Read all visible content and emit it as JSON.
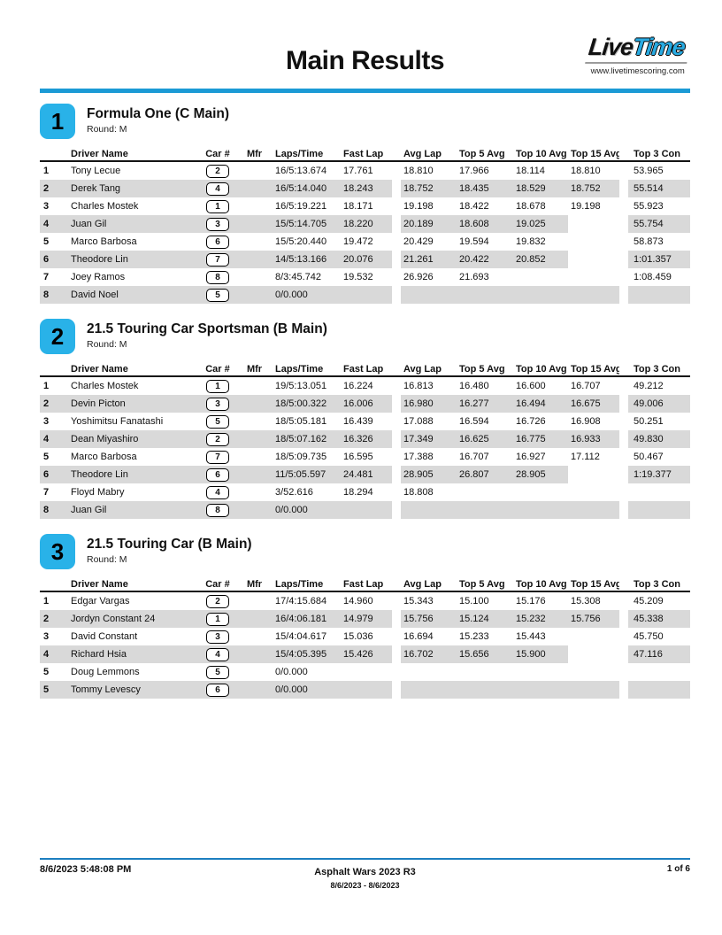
{
  "page": {
    "title": "Main Results",
    "logo_live": "Live",
    "logo_time": "Time",
    "logo_url": "www.livetimescoring.com",
    "accent_color": "#29b2e8",
    "bar_color": "#1b9ad5",
    "zebra_color": "#d9d9d9"
  },
  "columns": [
    "Driver Name",
    "Car #",
    "Mfr",
    "Laps/Time",
    "Fast Lap",
    "Avg Lap",
    "Top 5 Avg",
    "Top 10 Avg",
    "Top 15 Avg",
    "Top 3 Con"
  ],
  "sections": [
    {
      "number": "1",
      "title": "Formula One (C Main)",
      "round": "Round: M",
      "rows": [
        {
          "pos": "1",
          "driver": "Tony Lecue",
          "car_num": "2",
          "mfr": "",
          "laps_time": "16/5:13.674",
          "fast_lap": "17.761",
          "avg_lap": "18.810",
          "top5_avg": "17.966",
          "top10_avg": "18.114",
          "top15_avg": "18.810",
          "top3_con": "53.965"
        },
        {
          "pos": "2",
          "driver": "Derek Tang",
          "car_num": "4",
          "mfr": "",
          "laps_time": "16/5:14.040",
          "fast_lap": "18.243",
          "avg_lap": "18.752",
          "top5_avg": "18.435",
          "top10_avg": "18.529",
          "top15_avg": "18.752",
          "top3_con": "55.514"
        },
        {
          "pos": "3",
          "driver": "Charles Mostek",
          "car_num": "1",
          "mfr": "",
          "laps_time": "16/5:19.221",
          "fast_lap": "18.171",
          "avg_lap": "19.198",
          "top5_avg": "18.422",
          "top10_avg": "18.678",
          "top15_avg": "19.198",
          "top3_con": "55.923"
        },
        {
          "pos": "4",
          "driver": "Juan Gil",
          "car_num": "3",
          "mfr": "",
          "laps_time": "15/5:14.705",
          "fast_lap": "18.220",
          "avg_lap": "20.189",
          "top5_avg": "18.608",
          "top10_avg": "19.025",
          "top15_avg": "",
          "top3_con": "55.754"
        },
        {
          "pos": "5",
          "driver": "Marco Barbosa",
          "car_num": "6",
          "mfr": "",
          "laps_time": "15/5:20.440",
          "fast_lap": "19.472",
          "avg_lap": "20.429",
          "top5_avg": "19.594",
          "top10_avg": "19.832",
          "top15_avg": "",
          "top3_con": "58.873"
        },
        {
          "pos": "6",
          "driver": "Theodore Lin",
          "car_num": "7",
          "mfr": "",
          "laps_time": "14/5:13.166",
          "fast_lap": "20.076",
          "avg_lap": "21.261",
          "top5_avg": "20.422",
          "top10_avg": "20.852",
          "top15_avg": "",
          "top3_con": "1:01.357"
        },
        {
          "pos": "7",
          "driver": "Joey Ramos",
          "car_num": "8",
          "mfr": "",
          "laps_time": "8/3:45.742",
          "fast_lap": "19.532",
          "avg_lap": "26.926",
          "top5_avg": "21.693",
          "top10_avg": "",
          "top15_avg": "",
          "top3_con": "1:08.459"
        },
        {
          "pos": "8",
          "driver": "David Noel",
          "car_num": "5",
          "mfr": "",
          "laps_time": "0/0.000",
          "fast_lap": "",
          "avg_lap": "",
          "top5_avg": "",
          "top10_avg": "",
          "top15_avg": "",
          "top3_con": ""
        }
      ]
    },
    {
      "number": "2",
      "title": "21.5 Touring Car Sportsman (B Main)",
      "round": "Round: M",
      "rows": [
        {
          "pos": "1",
          "driver": "Charles Mostek",
          "car_num": "1",
          "mfr": "",
          "laps_time": "19/5:13.051",
          "fast_lap": "16.224",
          "avg_lap": "16.813",
          "top5_avg": "16.480",
          "top10_avg": "16.600",
          "top15_avg": "16.707",
          "top3_con": "49.212"
        },
        {
          "pos": "2",
          "driver": "Devin Picton",
          "car_num": "3",
          "mfr": "",
          "laps_time": "18/5:00.322",
          "fast_lap": "16.006",
          "avg_lap": "16.980",
          "top5_avg": "16.277",
          "top10_avg": "16.494",
          "top15_avg": "16.675",
          "top3_con": "49.006"
        },
        {
          "pos": "3",
          "driver": "Yoshimitsu Fanatashi",
          "car_num": "5",
          "mfr": "",
          "laps_time": "18/5:05.181",
          "fast_lap": "16.439",
          "avg_lap": "17.088",
          "top5_avg": "16.594",
          "top10_avg": "16.726",
          "top15_avg": "16.908",
          "top3_con": "50.251"
        },
        {
          "pos": "4",
          "driver": "Dean Miyashiro",
          "car_num": "2",
          "mfr": "",
          "laps_time": "18/5:07.162",
          "fast_lap": "16.326",
          "avg_lap": "17.349",
          "top5_avg": "16.625",
          "top10_avg": "16.775",
          "top15_avg": "16.933",
          "top3_con": "49.830"
        },
        {
          "pos": "5",
          "driver": "Marco Barbosa",
          "car_num": "7",
          "mfr": "",
          "laps_time": "18/5:09.735",
          "fast_lap": "16.595",
          "avg_lap": "17.388",
          "top5_avg": "16.707",
          "top10_avg": "16.927",
          "top15_avg": "17.112",
          "top3_con": "50.467"
        },
        {
          "pos": "6",
          "driver": "Theodore Lin",
          "car_num": "6",
          "mfr": "",
          "laps_time": "11/5:05.597",
          "fast_lap": "24.481",
          "avg_lap": "28.905",
          "top5_avg": "26.807",
          "top10_avg": "28.905",
          "top15_avg": "",
          "top3_con": "1:19.377"
        },
        {
          "pos": "7",
          "driver": "Floyd Mabry",
          "car_num": "4",
          "mfr": "",
          "laps_time": "3/52.616",
          "fast_lap": "18.294",
          "avg_lap": "18.808",
          "top5_avg": "",
          "top10_avg": "",
          "top15_avg": "",
          "top3_con": ""
        },
        {
          "pos": "8",
          "driver": "Juan Gil",
          "car_num": "8",
          "mfr": "",
          "laps_time": "0/0.000",
          "fast_lap": "",
          "avg_lap": "",
          "top5_avg": "",
          "top10_avg": "",
          "top15_avg": "",
          "top3_con": ""
        }
      ]
    },
    {
      "number": "3",
      "title": "21.5 Touring Car  (B Main)",
      "round": "Round: M",
      "rows": [
        {
          "pos": "1",
          "driver": "Edgar Vargas",
          "car_num": "2",
          "mfr": "",
          "laps_time": "17/4:15.684",
          "fast_lap": "14.960",
          "avg_lap": "15.343",
          "top5_avg": "15.100",
          "top10_avg": "15.176",
          "top15_avg": "15.308",
          "top3_con": "45.209"
        },
        {
          "pos": "2",
          "driver": "Jordyn Constant 24",
          "car_num": "1",
          "mfr": "",
          "laps_time": "16/4:06.181",
          "fast_lap": "14.979",
          "avg_lap": "15.756",
          "top5_avg": "15.124",
          "top10_avg": "15.232",
          "top15_avg": "15.756",
          "top3_con": "45.338"
        },
        {
          "pos": "3",
          "driver": "David Constant",
          "car_num": "3",
          "mfr": "",
          "laps_time": "15/4:04.617",
          "fast_lap": "15.036",
          "avg_lap": "16.694",
          "top5_avg": "15.233",
          "top10_avg": "15.443",
          "top15_avg": "",
          "top3_con": "45.750"
        },
        {
          "pos": "4",
          "driver": "Richard  Hsia",
          "car_num": "4",
          "mfr": "",
          "laps_time": "15/4:05.395",
          "fast_lap": "15.426",
          "avg_lap": "16.702",
          "top5_avg": "15.656",
          "top10_avg": "15.900",
          "top15_avg": "",
          "top3_con": "47.116"
        },
        {
          "pos": "5",
          "driver": "Doug Lemmons",
          "car_num": "5",
          "mfr": "",
          "laps_time": "0/0.000",
          "fast_lap": "",
          "avg_lap": "",
          "top5_avg": "",
          "top10_avg": "",
          "top15_avg": "",
          "top3_con": ""
        },
        {
          "pos": "5",
          "driver": "Tommy Levescy",
          "car_num": "6",
          "mfr": "",
          "laps_time": "0/0.000",
          "fast_lap": "",
          "avg_lap": "",
          "top5_avg": "",
          "top10_avg": "",
          "top15_avg": "",
          "top3_con": ""
        }
      ]
    }
  ],
  "footer": {
    "printed": "8/6/2023 5:48:08 PM",
    "event": "Asphalt Wars 2023 R3",
    "dates": "8/6/2023 - 8/6/2023",
    "page_num": "1 of 6"
  }
}
